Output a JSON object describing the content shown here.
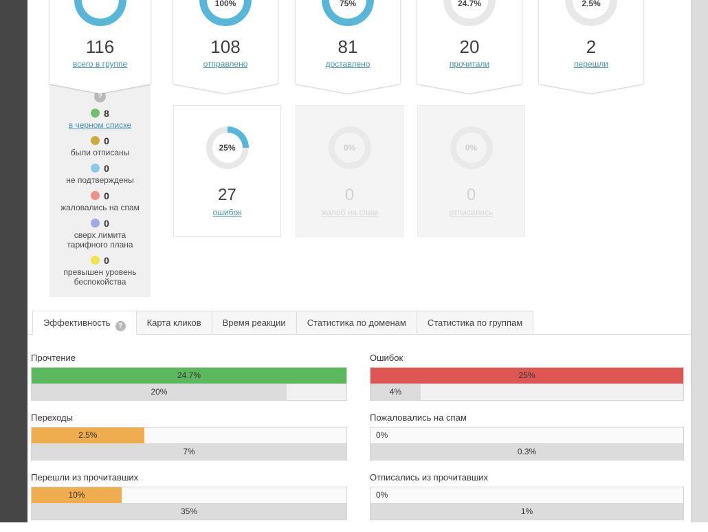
{
  "colors": {
    "accent_blue": "#58b6d8",
    "donut_track": "#e8e8e8",
    "donut_track_faded": "#e9e9e9",
    "green": "#5cb85c",
    "red": "#dc5753",
    "orange": "#f0ad4e",
    "avg_gray": "#dcdcdc"
  },
  "cards_row1": [
    {
      "percent": "",
      "donut_pct": 100,
      "value": "116",
      "label": "всего в группе"
    },
    {
      "percent": "100%",
      "donut_pct": 100,
      "value": "108",
      "label": "отправлено"
    },
    {
      "percent": "75%",
      "donut_pct": 75,
      "value": "81",
      "label": "доставлено"
    },
    {
      "percent": "24.7%",
      "donut_pct": 24.7,
      "value": "20",
      "label": "прочитали"
    },
    {
      "percent": "2.5%",
      "donut_pct": 2.5,
      "value": "2",
      "label": "перешли"
    }
  ],
  "cards_row2": [
    {
      "percent": "25%",
      "donut_pct": 25,
      "value": "27",
      "label": "ошибок",
      "active": true
    },
    {
      "percent": "0%",
      "donut_pct": 0,
      "value": "0",
      "label": "жалоб на спам",
      "active": false
    },
    {
      "percent": "0%",
      "donut_pct": 0,
      "value": "0",
      "label": "отписались",
      "active": false
    }
  ],
  "legend": {
    "help_icon": "?",
    "items": [
      {
        "color": "#6fc06f",
        "value": "8",
        "label": "в черном списке"
      },
      {
        "color": "#c9ac3e",
        "value": "0",
        "label": "были отписаны"
      },
      {
        "color": "#8ec7e8",
        "value": "0",
        "label": "не подтверждены"
      },
      {
        "color": "#f0908a",
        "value": "0",
        "label": "жаловались на спам"
      },
      {
        "color": "#a3a8e6",
        "value": "0",
        "label": "сверх лимита тарифного плана"
      },
      {
        "color": "#f0e44d",
        "value": "0",
        "label": "превышен уровень беспокойства"
      }
    ]
  },
  "tabs": [
    {
      "label": "Эффективность",
      "active": true,
      "help": "?"
    },
    {
      "label": "Карта кликов"
    },
    {
      "label": "Время реакции"
    },
    {
      "label": "Статистика по доменам"
    },
    {
      "label": "Статистика по группам"
    }
  ],
  "metrics": {
    "left": [
      {
        "title": "Прочтение",
        "value": 24.7,
        "value_label": "24.7%",
        "avg": 20,
        "avg_label": "20%",
        "color": "green"
      },
      {
        "title": "Переходы",
        "value": 2.5,
        "value_label": "2.5%",
        "avg": 7,
        "avg_label": "7%",
        "color": "orange"
      },
      {
        "title": "Перешли из прочитавших",
        "value": 10,
        "value_label": "10%",
        "avg": 35,
        "avg_label": "35%",
        "color": "orange"
      }
    ],
    "right": [
      {
        "title": "Ошибок",
        "value": 25,
        "value_label": "25%",
        "avg": 4,
        "avg_label": "4%",
        "color": "red"
      },
      {
        "title": "Пожаловались на спам",
        "value": 0,
        "value_label": "0%",
        "avg": 0.3,
        "avg_label": "0.3%",
        "color": "orange"
      },
      {
        "title": "Отписались из прочитавших",
        "value": 0,
        "value_label": "0%",
        "avg": 1,
        "avg_label": "1%",
        "color": "orange"
      }
    ]
  }
}
